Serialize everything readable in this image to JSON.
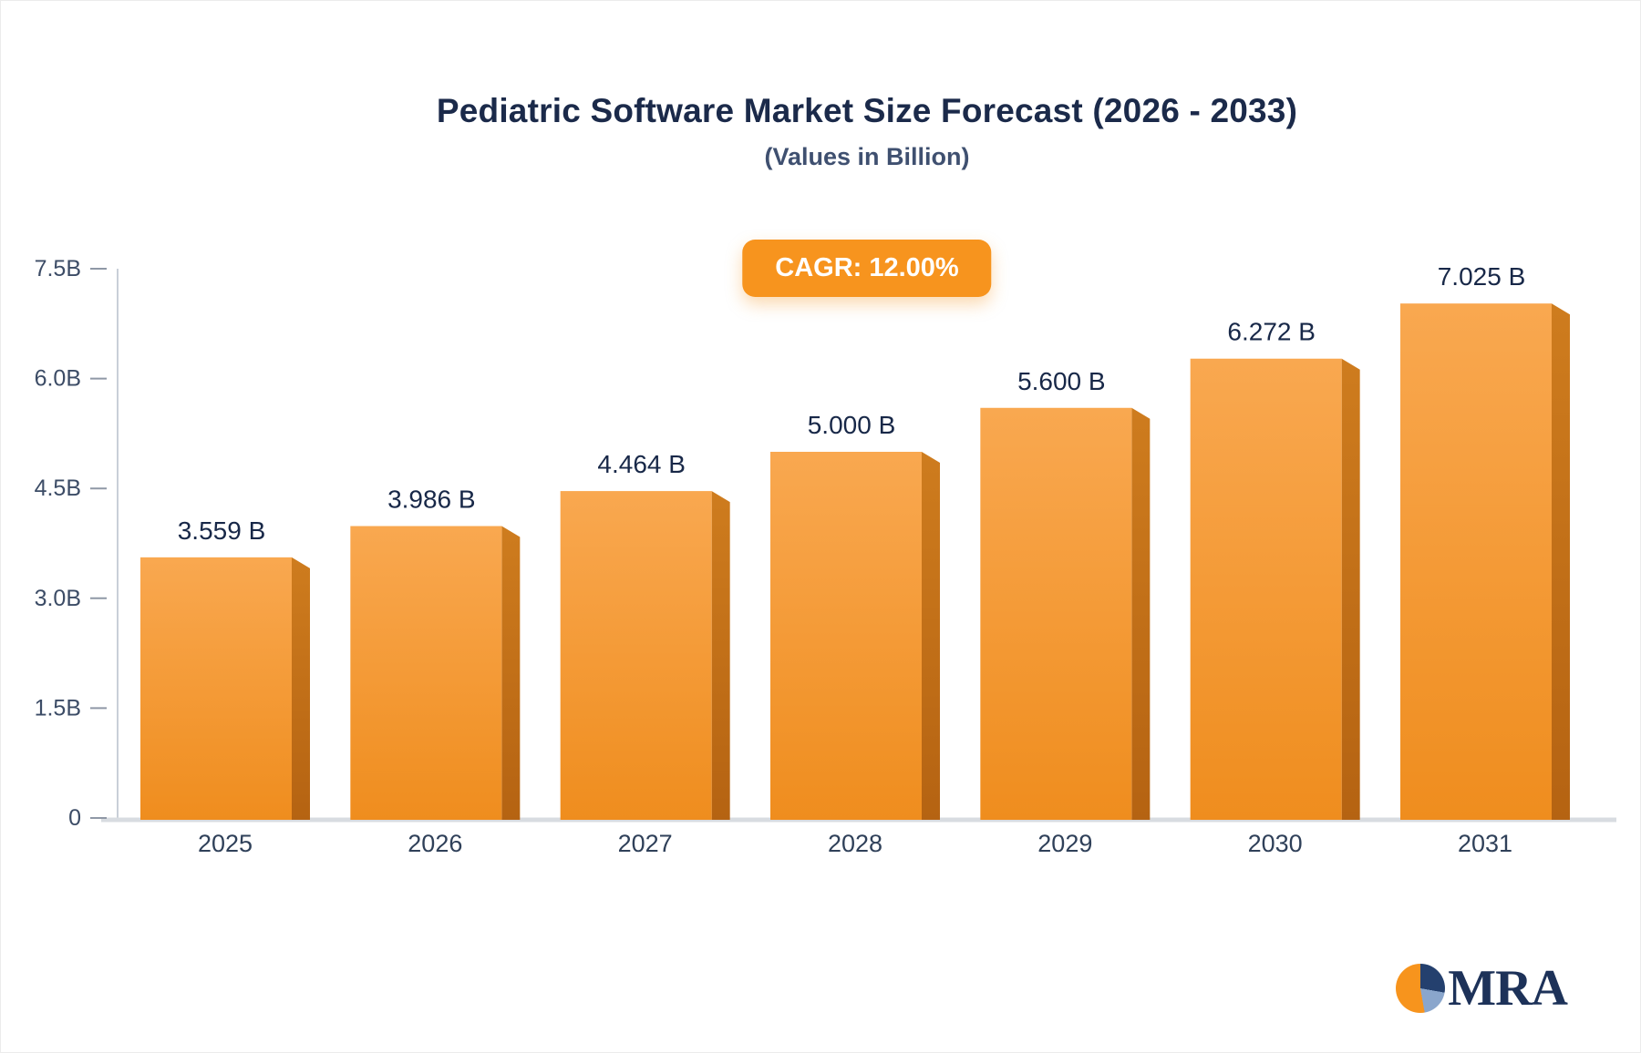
{
  "header": {
    "title": "Pediatric Software Market Size Forecast (2026 - 2033)",
    "subtitle": "(Values in Billion)"
  },
  "badge": {
    "label": "CAGR: 12.00%",
    "background": "#F7941E",
    "text_color": "#FFFFFF"
  },
  "chart_data": {
    "type": "bar",
    "title": "Pediatric Software Market Size Forecast (2026 - 2033)",
    "subtitle": "(Values in Billion)",
    "categories": [
      "2025",
      "2026",
      "2027",
      "2028",
      "2029",
      "2030",
      "2031"
    ],
    "values": [
      3.559,
      3.986,
      4.464,
      5.0,
      5.6,
      6.272,
      7.025
    ],
    "value_labels": [
      "3.559 B",
      "3.986 B",
      "4.464 B",
      "5.000 B",
      "5.600 B",
      "6.272 B",
      "7.025 B"
    ],
    "xlabel": "",
    "ylabel": "",
    "ylim": [
      0,
      7.5
    ],
    "yticks": [
      0,
      1.5,
      3.0,
      4.5,
      6.0,
      7.5
    ],
    "ytick_labels": [
      "0",
      "1.5B",
      "3.0B",
      "4.5B",
      "6.0B",
      "7.5B"
    ],
    "grid": false,
    "legend_position": "none",
    "colors": {
      "bar_face_top": "#F9A850",
      "bar_face_bottom": "#EF8D1E",
      "bar_side_top": "#CE7C1E",
      "bar_side_bottom": "#B56312",
      "axis_line": "#C9CFD8",
      "baseline": "#D8DCE1",
      "tick_dash": "#8F98A6",
      "tick_label": "#3C4C66",
      "x_label": "#2F4059",
      "value_label": "#182848"
    }
  },
  "logo": {
    "text": "MRA"
  }
}
